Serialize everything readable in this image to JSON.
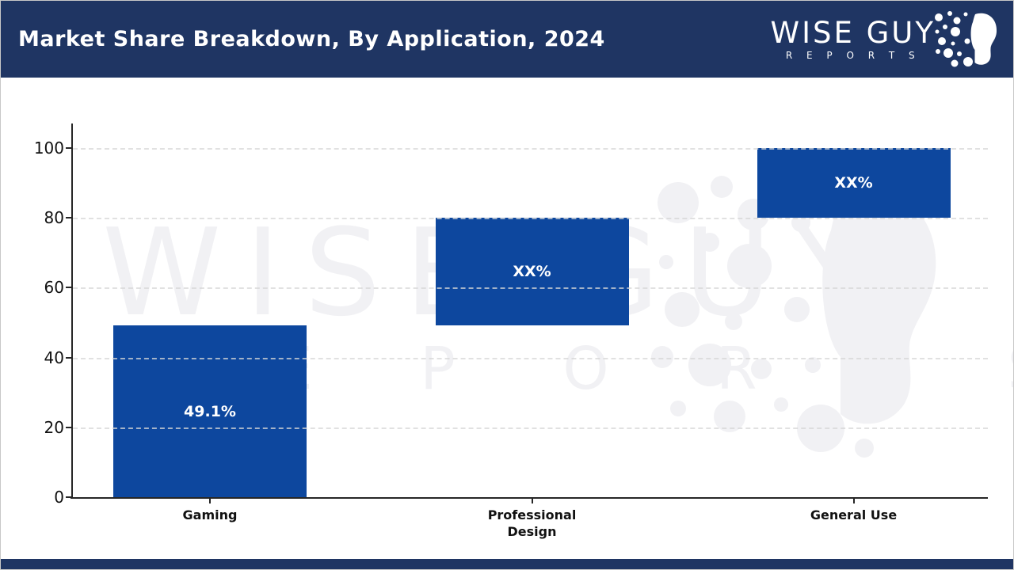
{
  "header": {
    "title": "Market Share Breakdown, By Application, 2024",
    "logo_line1": "WISE GUY",
    "logo_line2": "R E P O R T S"
  },
  "watermark": {
    "line1": "WISE GUY",
    "line2": "R E P O R T S"
  },
  "colors": {
    "header_bg": "#1f3563",
    "footer_bg": "#1f3563",
    "bar": "#0d479e",
    "bar_label": "#ffffff",
    "axis": "#262626",
    "grid": "#d7d7d7",
    "watermark": "#f1f1f4"
  },
  "chart_data": {
    "type": "bar",
    "variant": "waterfall",
    "title": "Market Share Breakdown, By Application, 2024",
    "categories": [
      "Gaming",
      "Professional Design",
      "General Use"
    ],
    "category_label_lines": [
      [
        "Gaming"
      ],
      [
        "Professional",
        "Design"
      ],
      [
        "General Use"
      ]
    ],
    "segments": [
      {
        "category": "Gaming",
        "start": 0,
        "end": 49.1,
        "label": "49.1%"
      },
      {
        "category": "Professional Design",
        "start": 49.1,
        "end": 80,
        "label": "XX%"
      },
      {
        "category": "General Use",
        "start": 80,
        "end": 100,
        "label": "XX%"
      }
    ],
    "yticks": [
      0,
      20,
      40,
      60,
      80,
      100
    ],
    "ylim": [
      0,
      107
    ],
    "xlabel": "",
    "ylabel": "",
    "grid": {
      "axis": "y",
      "style": "dashed"
    },
    "legend": "none"
  }
}
